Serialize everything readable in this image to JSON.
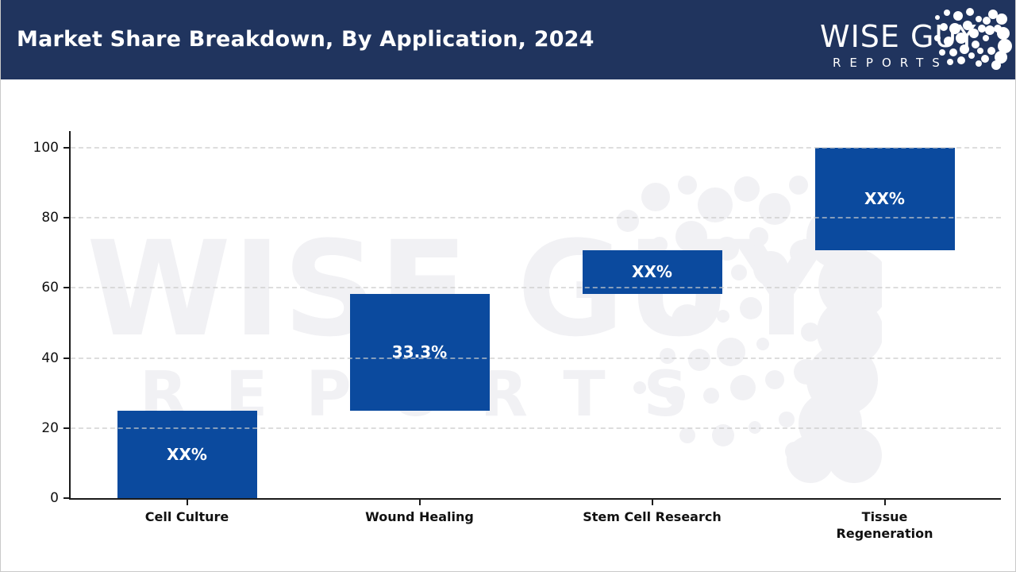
{
  "header": {
    "title": "Market Share Breakdown, By Application, 2024",
    "logo": {
      "line1": "WISE GUY",
      "line2": "REPORTS"
    }
  },
  "watermark": {
    "line1": "WISE GUY",
    "line2": "REPORTS"
  },
  "chart_data": {
    "type": "bar",
    "subtype": "floating-waterfall",
    "title": "Market Share Breakdown, By Application, 2024",
    "categories": [
      "Cell Culture",
      "Wound Healing",
      "Stem Cell Research",
      "Tissue Regeneration"
    ],
    "category_lines": [
      [
        "Cell Culture"
      ],
      [
        "Wound Healing"
      ],
      [
        "Stem Cell Research"
      ],
      [
        "Tissue",
        "Regeneration"
      ]
    ],
    "segments": [
      {
        "category": "Cell Culture",
        "start": 0,
        "end": 25,
        "label": "XX%"
      },
      {
        "category": "Wound Healing",
        "start": 25,
        "end": 58.3,
        "label": "33.3%"
      },
      {
        "category": "Stem Cell Research",
        "start": 58.3,
        "end": 70.8,
        "label": "XX%"
      },
      {
        "category": "Tissue Regeneration",
        "start": 70.8,
        "end": 100,
        "label": "XX%"
      }
    ],
    "xlabel": "",
    "ylabel": "",
    "ylim": [
      0,
      100
    ],
    "yticks": [
      0,
      20,
      40,
      60,
      80,
      100
    ],
    "grid": "dashed-horizontal",
    "legend": false
  },
  "colors": {
    "header_bg": "#20345e",
    "bar": "#0b4a9e",
    "bar_label": "#ffffff",
    "axis": "#1a1a1a",
    "gridline": "#cbcbcb",
    "watermark": "#f1f1f4",
    "tick_text": "#111111"
  }
}
